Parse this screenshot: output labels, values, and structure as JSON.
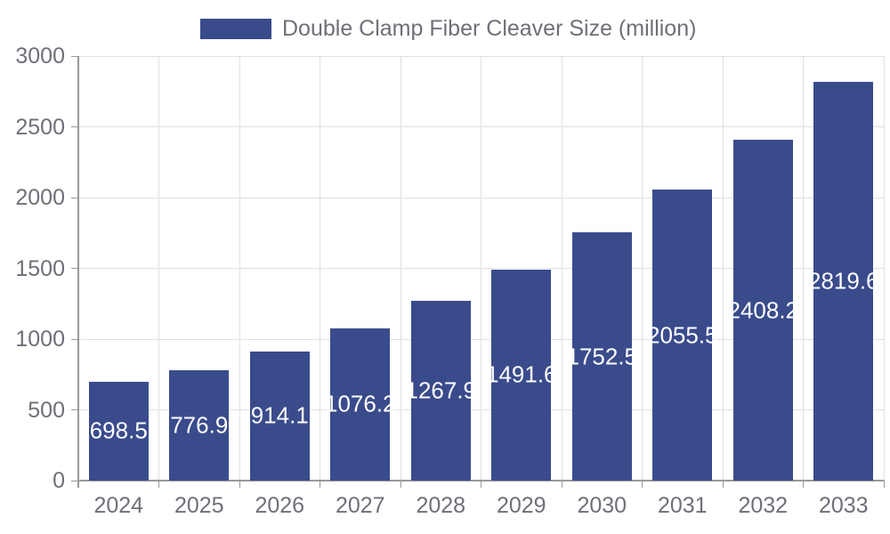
{
  "legend": {
    "label": "Double Clamp Fiber Cleaver Size (million)"
  },
  "colors": {
    "bar": "#3A4B8C",
    "axis_line": "#999999",
    "tick": "#999999",
    "grid_line": "#E0E0E0",
    "axis_label": "#6E7079",
    "legend_label": "#6E7079",
    "value_label": "#FFFFFF",
    "background": "#FFFFFF"
  },
  "chart_data": {
    "type": "bar",
    "title": "Double Clamp Fiber Cleaver Size (million)",
    "categories": [
      "2024",
      "2025",
      "2026",
      "2027",
      "2028",
      "2029",
      "2030",
      "2031",
      "2032",
      "2033"
    ],
    "series": [
      {
        "name": "Double Clamp Fiber Cleaver Size (million)",
        "values": [
          698.5,
          776.9,
          914.1,
          1076.2,
          1267.9,
          1491.6,
          1752.5,
          2055.5,
          2408.2,
          2819.6
        ]
      }
    ],
    "xlabel": "",
    "ylabel": "",
    "ylim": [
      0,
      3000
    ],
    "yticks": [
      0,
      500,
      1000,
      1500,
      2000,
      2500,
      3000
    ],
    "grid": true,
    "legend_position": "top-center",
    "value_label_position": "inside-center"
  }
}
